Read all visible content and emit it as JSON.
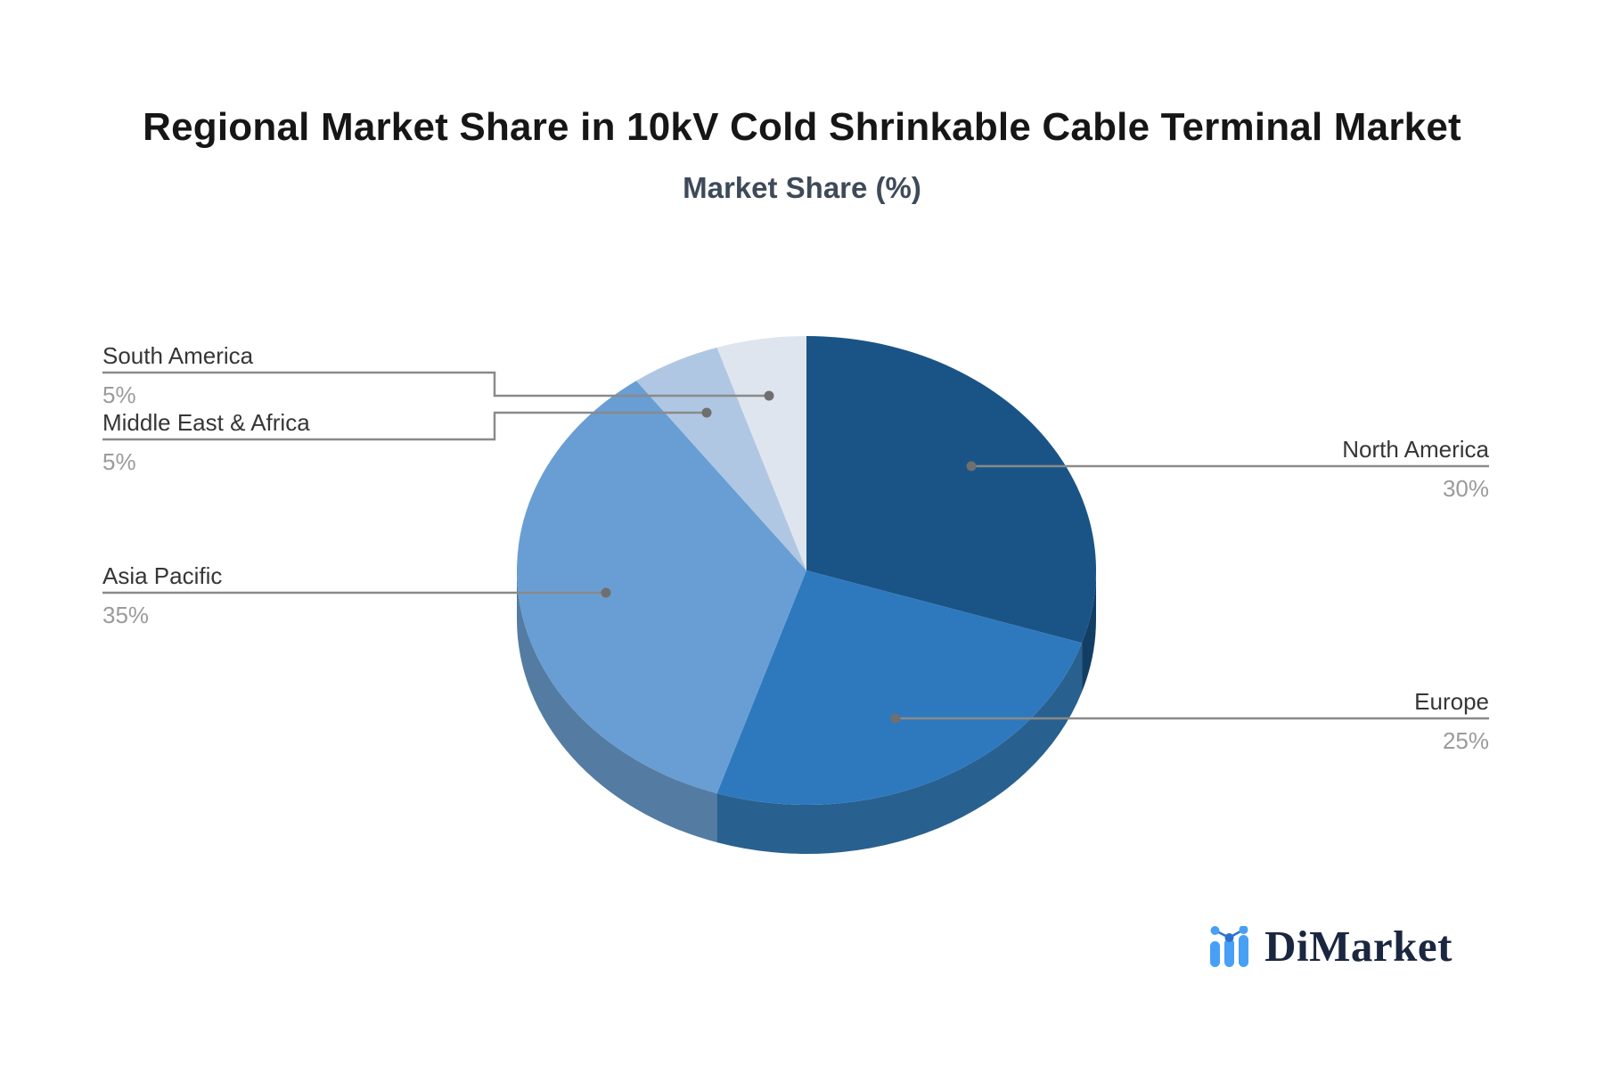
{
  "header": {
    "title": "Regional Market Share in 10kV Cold Shrinkable Cable Terminal Market",
    "subtitle": "Market Share (%)"
  },
  "chart_data": {
    "type": "pie",
    "title": "Regional Market Share in 10kV Cold Shrinkable Cable Terminal Market",
    "subtitle": "Market Share (%)",
    "unit": "%",
    "pseudo_3d": true,
    "start_angle": "12 o'clock, clockwise",
    "legend_position": "none (callout leader labels)",
    "slices": [
      {
        "label": "North America",
        "value": 30,
        "display": "30%",
        "color": "#1A5487",
        "depth_color": "#133E64"
      },
      {
        "label": "Europe",
        "value": 25,
        "display": "25%",
        "color": "#2E79BE",
        "depth_color": "#28618F"
      },
      {
        "label": "Asia Pacific",
        "value": 35,
        "display": "35%",
        "color": "#689ED3",
        "depth_color": "#547CA3"
      },
      {
        "label": "Middle East & Africa",
        "value": 5,
        "display": "5%",
        "color": "#AFC7E3",
        "depth_color": "#8CA0B6"
      },
      {
        "label": "South America",
        "value": 5,
        "display": "5%",
        "color": "#DFE5EE",
        "depth_color": "#B3BAC6"
      }
    ]
  },
  "callout_style": {
    "line_color": "#8A8A8A",
    "dot_color": "#6F6F6F",
    "label_color": "#363636",
    "value_color": "#9B9B9B"
  },
  "branding": {
    "logo_text": "DiMarket",
    "logo_color": "#1B2740",
    "icon_bar_color": "#47A0F5",
    "icon_accent_color": "#2D6FD1"
  }
}
